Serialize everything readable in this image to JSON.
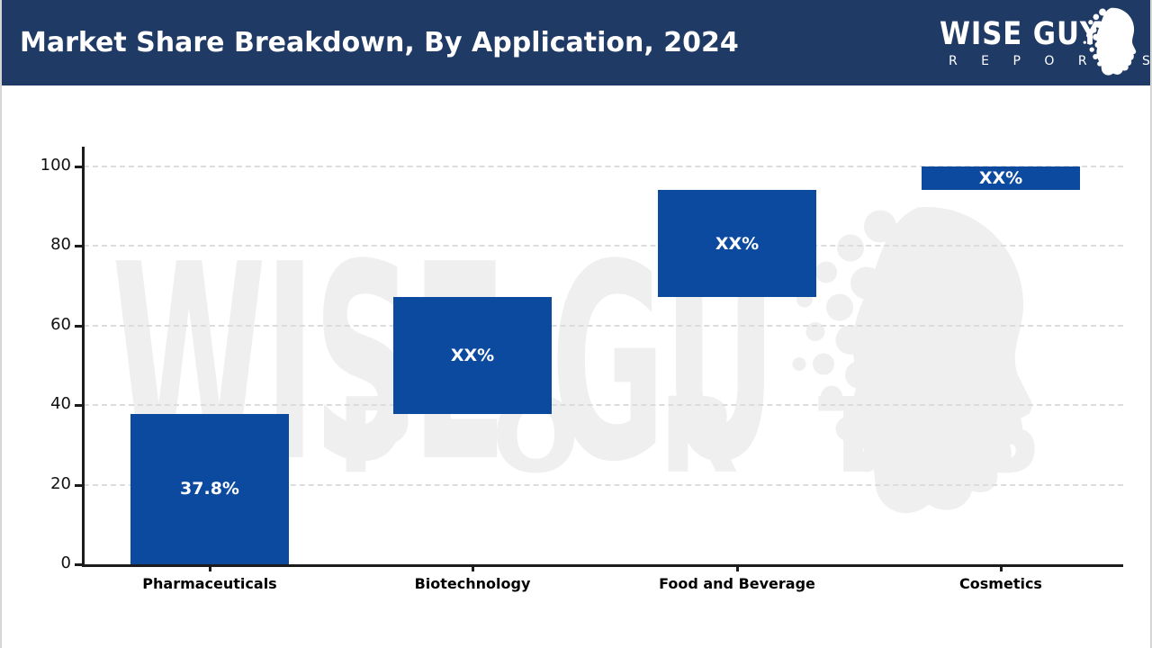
{
  "header": {
    "title": "Market Share Breakdown, By Application, 2024",
    "bg_color": "#203a66",
    "brand": {
      "line1": "WISE GUY",
      "line2": "R E P O R T S"
    }
  },
  "watermark": {
    "line1": "WISE GU",
    "line2": "P O R T S"
  },
  "chart_data": {
    "type": "bar",
    "subtype": "waterfall",
    "title": "Market Share Breakdown, By Application, 2024",
    "categories": [
      "Pharmaceuticals",
      "Biotechnology",
      "Food and Beverage",
      "Cosmetics"
    ],
    "bars": [
      {
        "category": "Pharmaceuticals",
        "base": 0,
        "top": 37.8,
        "value": 37.8,
        "label": "37.8%"
      },
      {
        "category": "Biotechnology",
        "base": 37.8,
        "top": 67.2,
        "value": 29.4,
        "label": "XX%"
      },
      {
        "category": "Food and Beverage",
        "base": 67.2,
        "top": 94.1,
        "value": 26.9,
        "label": "XX%"
      },
      {
        "category": "Cosmetics",
        "base": 94.1,
        "top": 100.0,
        "value": 5.9,
        "label": "XX%"
      }
    ],
    "yticks": [
      0,
      20,
      40,
      60,
      80,
      100
    ],
    "ylim": [
      0,
      105
    ],
    "bar_color": "#0c4a9f",
    "bar_label_color": "#ffffff",
    "grid": "horizontal dashed",
    "legend": "none"
  }
}
